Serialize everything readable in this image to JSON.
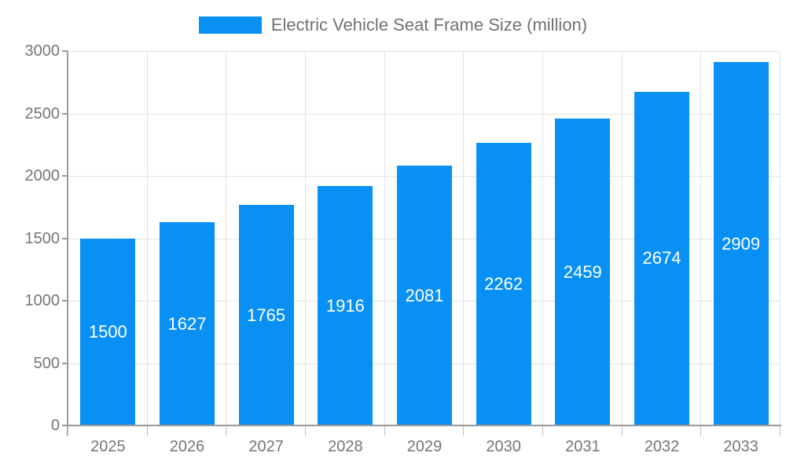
{
  "chart_data": {
    "type": "bar",
    "title": "Electric Vehicle Seat Frame Size (million)",
    "legend": {
      "position": "top",
      "entries": [
        "Electric Vehicle Seat Frame Size (million)"
      ]
    },
    "categories": [
      "2025",
      "2026",
      "2027",
      "2028",
      "2029",
      "2030",
      "2031",
      "2032",
      "2033"
    ],
    "values": [
      1500,
      1627,
      1765,
      1916,
      2081,
      2262,
      2459,
      2674,
      2909
    ],
    "xlabel": "",
    "ylabel": "",
    "ylim": [
      0,
      3000
    ],
    "yticks": [
      0,
      500,
      1000,
      1500,
      2000,
      2500,
      3000
    ],
    "grid": true,
    "bar_value_labels": [
      "1500",
      "1627",
      "1765",
      "1916",
      "2081",
      "2262",
      "2459",
      "2674",
      "2909"
    ],
    "colors": {
      "bar": "#0990f4",
      "bar_label_text": "#ffffff",
      "grid_line": "#e3e3e3",
      "axis_line": "#9a9a9a",
      "x_tick_mark": "#c0c0c0",
      "axis_text": "#757575",
      "legend_text": "#717171",
      "background": "#ffffff"
    }
  }
}
